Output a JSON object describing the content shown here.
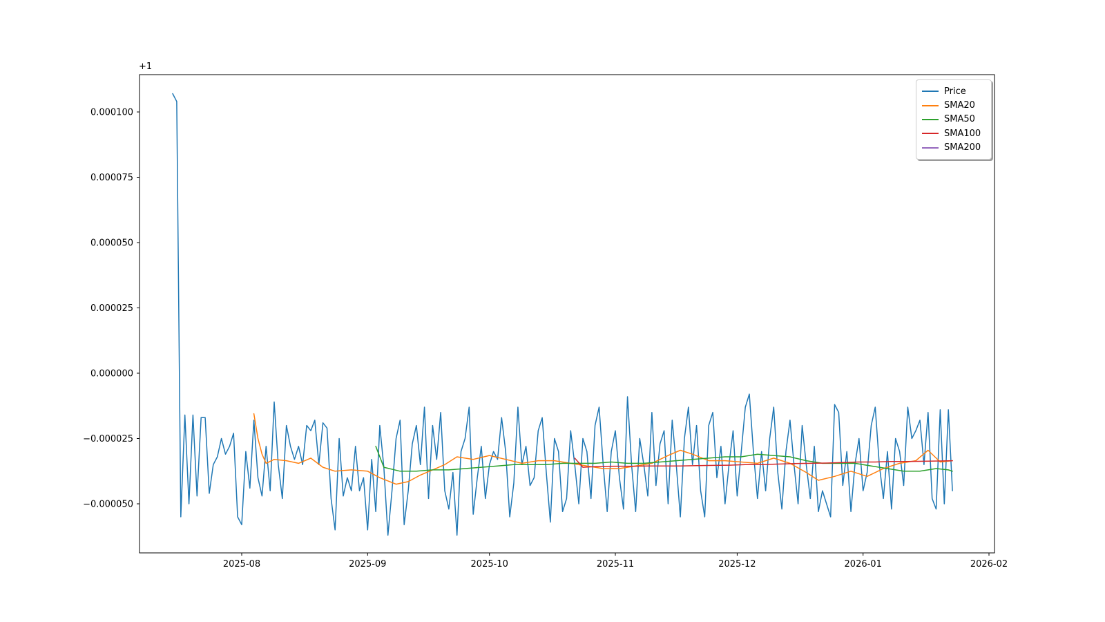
{
  "chart_data": {
    "type": "line",
    "title": "",
    "xlabel": "",
    "ylabel": "",
    "grid": false,
    "legend": {
      "position": "upper right",
      "entries": [
        "Price",
        "SMA20",
        "SMA50",
        "SMA100",
        "SMA200"
      ]
    },
    "y_axis": {
      "offset_text": "+1",
      "unit_note": "tick values are offsets from 1.0; series values below are in units of 1e-6 relative to 1.0",
      "ticks": [
        {
          "label": "0.000100",
          "value_micro": 100
        },
        {
          "label": "0.000075",
          "value_micro": 75
        },
        {
          "label": "0.000050",
          "value_micro": 50
        },
        {
          "label": "0.000025",
          "value_micro": 25
        },
        {
          "label": "0.000000",
          "value_micro": 0
        },
        {
          "label": "−0.000025",
          "value_micro": -25
        },
        {
          "label": "−0.000050",
          "value_micro": -50
        }
      ]
    },
    "x_axis": {
      "ticks": [
        {
          "label": "2025-08",
          "date": "2025-08-01"
        },
        {
          "label": "2025-09",
          "date": "2025-09-01"
        },
        {
          "label": "2025-10",
          "date": "2025-10-01"
        },
        {
          "label": "2025-11",
          "date": "2025-11-01"
        },
        {
          "label": "2025-12",
          "date": "2025-12-01"
        },
        {
          "label": "2026-01",
          "date": "2026-01-01"
        },
        {
          "label": "2026-02",
          "date": "2026-02-01"
        }
      ]
    },
    "series": [
      {
        "name": "Price",
        "color": "#1f77b4",
        "start_date": "2025-07-15",
        "cadence_days": 1,
        "values_micro": [
          107,
          104,
          -55,
          -16,
          -50,
          -16,
          -47,
          -17,
          -17,
          -46,
          -35,
          -32,
          -25,
          -31,
          -28,
          -23,
          -55,
          -58,
          -30,
          -44,
          -18,
          -40,
          -47,
          -28,
          -45,
          -11,
          -35,
          -48,
          -20,
          -28,
          -33,
          -28,
          -35,
          -20,
          -22,
          -18,
          -35,
          -19,
          -21,
          -48,
          -60,
          -25,
          -47,
          -40,
          -45,
          -28,
          -45,
          -40,
          -60,
          -33,
          -53,
          -20,
          -36,
          -62,
          -45,
          -25,
          -18,
          -58,
          -45,
          -27,
          -20,
          -35,
          -13,
          -48,
          -20,
          -33,
          -15,
          -45,
          -52,
          -38,
          -62,
          -30,
          -25,
          -13,
          -54,
          -40,
          -28,
          -48,
          -35,
          -30,
          -33,
          -17,
          -30,
          -55,
          -42,
          -13,
          -35,
          -28,
          -43,
          -40,
          -22,
          -17,
          -38,
          -57,
          -25,
          -30,
          -53,
          -48,
          -22,
          -35,
          -50,
          -25,
          -30,
          -48,
          -20,
          -13,
          -35,
          -53,
          -30,
          -22,
          -40,
          -52,
          -9,
          -35,
          -53,
          -25,
          -35,
          -47,
          -15,
          -43,
          -27,
          -22,
          -50,
          -18,
          -35,
          -55,
          -25,
          -13,
          -35,
          -20,
          -45,
          -55,
          -20,
          -15,
          -40,
          -28,
          -50,
          -35,
          -22,
          -47,
          -30,
          -13,
          -8,
          -30,
          -48,
          -30,
          -45,
          -25,
          -13,
          -38,
          -52,
          -30,
          -18,
          -35,
          -50,
          -20,
          -35,
          -48,
          -28,
          -53,
          -45,
          -50,
          -55,
          -12,
          -15,
          -43,
          -30,
          -53,
          -35,
          -25,
          -45,
          -38,
          -20,
          -13,
          -35,
          -48,
          -30,
          -52,
          -25,
          -30,
          -43,
          -13,
          -25,
          -22,
          -18,
          -35,
          -15,
          -48,
          -52,
          -14,
          -50,
          -14,
          -45
        ]
      },
      {
        "name": "SMA20",
        "color": "#ff7f0e",
        "points_micro": [
          [
            "2025-08-04",
            -15.5
          ],
          [
            "2025-08-05",
            -25
          ],
          [
            "2025-08-06",
            -31
          ],
          [
            "2025-08-07",
            -34.5
          ],
          [
            "2025-08-09",
            -33
          ],
          [
            "2025-08-12",
            -33.5
          ],
          [
            "2025-08-15",
            -34.5
          ],
          [
            "2025-08-18",
            -32.5
          ],
          [
            "2025-08-21",
            -36
          ],
          [
            "2025-08-24",
            -37.5
          ],
          [
            "2025-08-28",
            -37
          ],
          [
            "2025-09-01",
            -37.5
          ],
          [
            "2025-09-04",
            -40
          ],
          [
            "2025-09-08",
            -42.5
          ],
          [
            "2025-09-11",
            -41.5
          ],
          [
            "2025-09-14",
            -39
          ],
          [
            "2025-09-17",
            -37
          ],
          [
            "2025-09-20",
            -35
          ],
          [
            "2025-09-23",
            -32
          ],
          [
            "2025-09-27",
            -33
          ],
          [
            "2025-10-01",
            -31.5
          ],
          [
            "2025-10-05",
            -33
          ],
          [
            "2025-10-09",
            -34.5
          ],
          [
            "2025-10-13",
            -33.5
          ],
          [
            "2025-10-17",
            -33.5
          ],
          [
            "2025-10-21",
            -34.5
          ],
          [
            "2025-10-25",
            -35.5
          ],
          [
            "2025-10-29",
            -36.5
          ],
          [
            "2025-11-02",
            -36.5
          ],
          [
            "2025-11-06",
            -35.5
          ],
          [
            "2025-11-10",
            -34.5
          ],
          [
            "2025-11-14",
            -31.5
          ],
          [
            "2025-11-17",
            -29.5
          ],
          [
            "2025-11-20",
            -31
          ],
          [
            "2025-11-24",
            -33.5
          ],
          [
            "2025-11-28",
            -33.5
          ],
          [
            "2025-12-02",
            -34
          ],
          [
            "2025-12-06",
            -34.5
          ],
          [
            "2025-12-10",
            -32.5
          ],
          [
            "2025-12-14",
            -34.5
          ],
          [
            "2025-12-18",
            -38
          ],
          [
            "2025-12-21",
            -41
          ],
          [
            "2025-12-25",
            -39.5
          ],
          [
            "2025-12-29",
            -37.5
          ],
          [
            "2026-01-02",
            -39.5
          ],
          [
            "2026-01-06",
            -36.5
          ],
          [
            "2026-01-10",
            -34.5
          ],
          [
            "2026-01-14",
            -33.5
          ],
          [
            "2026-01-17",
            -29.5
          ],
          [
            "2026-01-20",
            -34
          ],
          [
            "2026-01-23",
            -33.5
          ]
        ]
      },
      {
        "name": "SMA50",
        "color": "#2ca02c",
        "points_micro": [
          [
            "2025-09-03",
            -28
          ],
          [
            "2025-09-05",
            -36
          ],
          [
            "2025-09-09",
            -37.5
          ],
          [
            "2025-09-13",
            -37.5
          ],
          [
            "2025-09-17",
            -37
          ],
          [
            "2025-09-21",
            -37
          ],
          [
            "2025-09-25",
            -36.5
          ],
          [
            "2025-09-29",
            -36
          ],
          [
            "2025-10-03",
            -35.5
          ],
          [
            "2025-10-07",
            -35
          ],
          [
            "2025-10-11",
            -35
          ],
          [
            "2025-10-15",
            -35
          ],
          [
            "2025-10-19",
            -34.5
          ],
          [
            "2025-10-23",
            -34.5
          ],
          [
            "2025-10-27",
            -34.5
          ],
          [
            "2025-10-31",
            -34
          ],
          [
            "2025-11-04",
            -34.5
          ],
          [
            "2025-11-08",
            -34.5
          ],
          [
            "2025-11-12",
            -34
          ],
          [
            "2025-11-16",
            -33.5
          ],
          [
            "2025-11-20",
            -33
          ],
          [
            "2025-11-24",
            -32.5
          ],
          [
            "2025-11-28",
            -32
          ],
          [
            "2025-12-02",
            -32
          ],
          [
            "2025-12-06",
            -31
          ],
          [
            "2025-12-10",
            -31.5
          ],
          [
            "2025-12-14",
            -32
          ],
          [
            "2025-12-18",
            -33.5
          ],
          [
            "2025-12-22",
            -34.5
          ],
          [
            "2025-12-26",
            -34.5
          ],
          [
            "2025-12-30",
            -34.5
          ],
          [
            "2026-01-03",
            -35.5
          ],
          [
            "2026-01-07",
            -36.5
          ],
          [
            "2026-01-11",
            -37.5
          ],
          [
            "2026-01-15",
            -37.5
          ],
          [
            "2026-01-19",
            -36.5
          ],
          [
            "2026-01-22",
            -37
          ],
          [
            "2026-01-23",
            -37.5
          ]
        ]
      },
      {
        "name": "SMA100",
        "color": "#d62728",
        "points_micro": [
          [
            "2025-10-22",
            -32.5
          ],
          [
            "2025-10-24",
            -36
          ],
          [
            "2025-10-28",
            -35.7
          ],
          [
            "2025-11-01",
            -35.6
          ],
          [
            "2025-11-05",
            -35.6
          ],
          [
            "2025-11-09",
            -35.5
          ],
          [
            "2025-11-13",
            -35.5
          ],
          [
            "2025-11-17",
            -35.5
          ],
          [
            "2025-11-21",
            -35.4
          ],
          [
            "2025-11-25",
            -35.3
          ],
          [
            "2025-11-29",
            -35.2
          ],
          [
            "2025-12-03",
            -35
          ],
          [
            "2025-12-07",
            -35
          ],
          [
            "2025-12-11",
            -34.8
          ],
          [
            "2025-12-15",
            -34.6
          ],
          [
            "2025-12-19",
            -34.5
          ],
          [
            "2025-12-23",
            -34.4
          ],
          [
            "2025-12-27",
            -34.2
          ],
          [
            "2025-12-31",
            -34
          ],
          [
            "2026-01-04",
            -34
          ],
          [
            "2026-01-08",
            -33.8
          ],
          [
            "2026-01-12",
            -33.8
          ],
          [
            "2026-01-16",
            -33.7
          ],
          [
            "2026-01-20",
            -33.6
          ],
          [
            "2026-01-23",
            -33.5
          ]
        ]
      },
      {
        "name": "SMA200",
        "color": "#9467bd",
        "points_micro": []
      }
    ]
  }
}
